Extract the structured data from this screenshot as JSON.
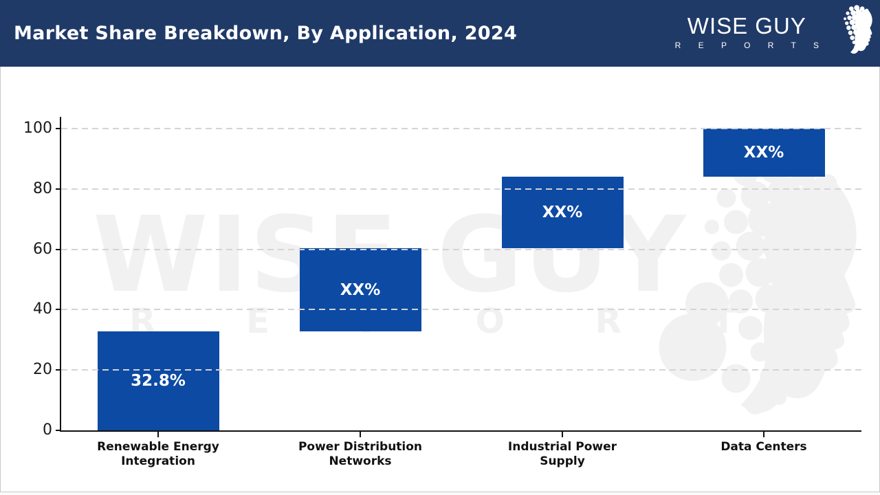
{
  "header": {
    "title": "Market Share Breakdown, By Application, 2024",
    "bg_color": "#203a68",
    "logo": {
      "line1": "WISE GUY",
      "line2": "R E P O R T S"
    }
  },
  "watermark": {
    "line1": "WISE GUY",
    "line2": "R E P O R T S"
  },
  "chart_data": {
    "type": "bar",
    "subtype": "floating-waterfall",
    "title": "Market Share Breakdown, By Application, 2024",
    "categories": [
      "Renewable Energy Integration",
      "Power Distribution Networks",
      "Industrial Power Supply",
      "Data Centers"
    ],
    "category_label_lines": [
      [
        "Renewable Energy",
        "Integration"
      ],
      [
        "Power Distribution",
        "Networks"
      ],
      [
        "Industrial Power",
        "Supply"
      ],
      [
        "Data Centers"
      ]
    ],
    "segments": [
      {
        "category": "Renewable Energy Integration",
        "start": 0,
        "end": 32.8,
        "label": "32.8%"
      },
      {
        "category": "Power Distribution Networks",
        "start": 32.8,
        "end": 60.3,
        "label": "XX%"
      },
      {
        "category": "Industrial Power Supply",
        "start": 60.3,
        "end": 84.0,
        "label": "XX%"
      },
      {
        "category": "Data Centers",
        "start": 84.0,
        "end": 100.0,
        "label": "XX%"
      }
    ],
    "ylim": [
      0,
      100
    ],
    "yticks": [
      0,
      20,
      40,
      60,
      80,
      100
    ],
    "grid": "horizontal-dashed",
    "legend": "none",
    "colors": {
      "bar": "#0d4aa3",
      "bar_label": "#ffffff",
      "grid": "#d4d4d4",
      "axis": "#111111",
      "header_bg": "#203a68",
      "watermark": "#f1f1f1",
      "card_border": "#c9c9c9"
    }
  }
}
